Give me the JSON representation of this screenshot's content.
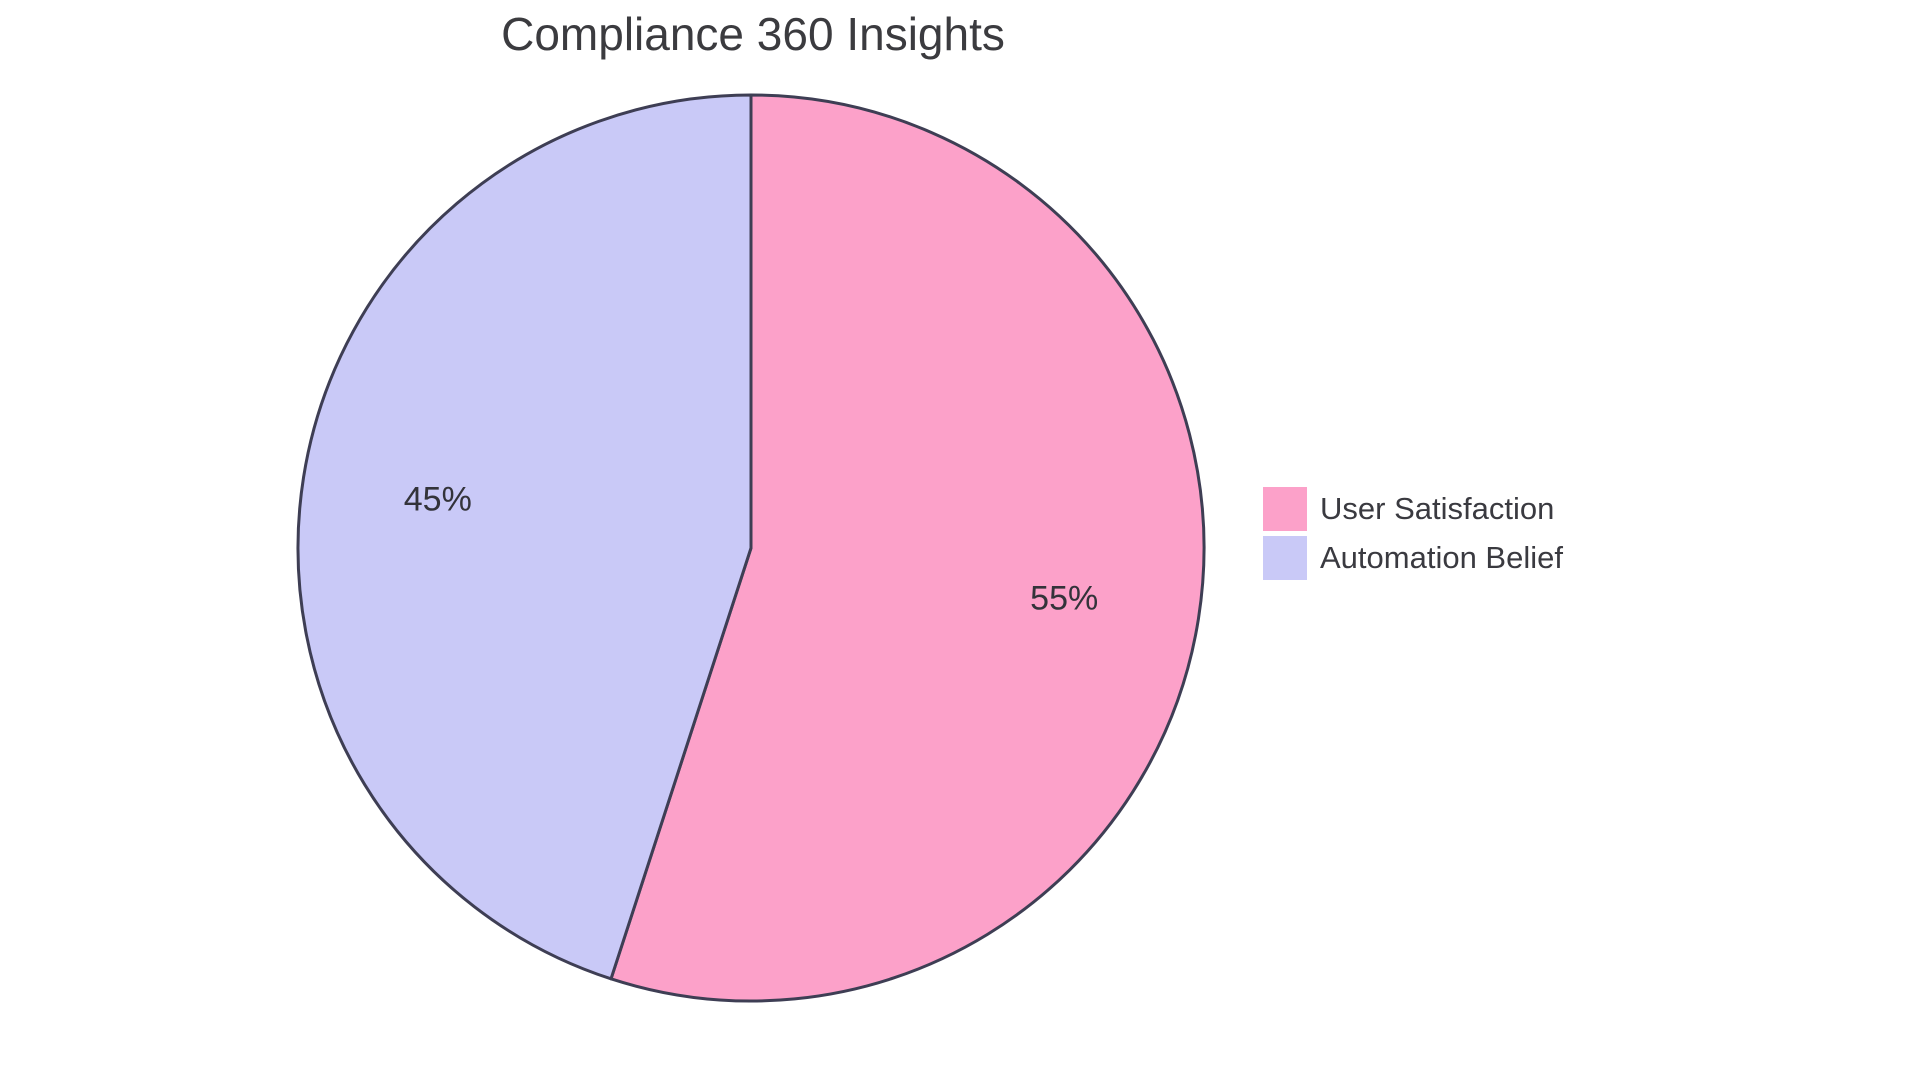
{
  "title": "Compliance 360 Insights",
  "colors": {
    "background": "#ffffff",
    "slice_stroke": "#3e3e54",
    "title_text": "#3b3b3f",
    "slice_label_text": "#33333a",
    "legend_text": "#3a3a40"
  },
  "legend": {
    "position": "right",
    "items": [
      {
        "label": "User Satisfaction",
        "color": "#fca1c9"
      },
      {
        "label": "Automation Belief",
        "color": "#c9c9f7"
      }
    ]
  },
  "chart_data": {
    "type": "pie",
    "title": "Compliance 360 Insights",
    "start_angle_deg": 0,
    "direction": "clockwise",
    "legend_position": "right",
    "grid": false,
    "slices": [
      {
        "label": "User Satisfaction",
        "value": 55,
        "percent_label": "55%",
        "color": "#fca1c9"
      },
      {
        "label": "Automation Belief",
        "value": 45,
        "percent_label": "45%",
        "color": "#c9c9f7"
      }
    ]
  }
}
